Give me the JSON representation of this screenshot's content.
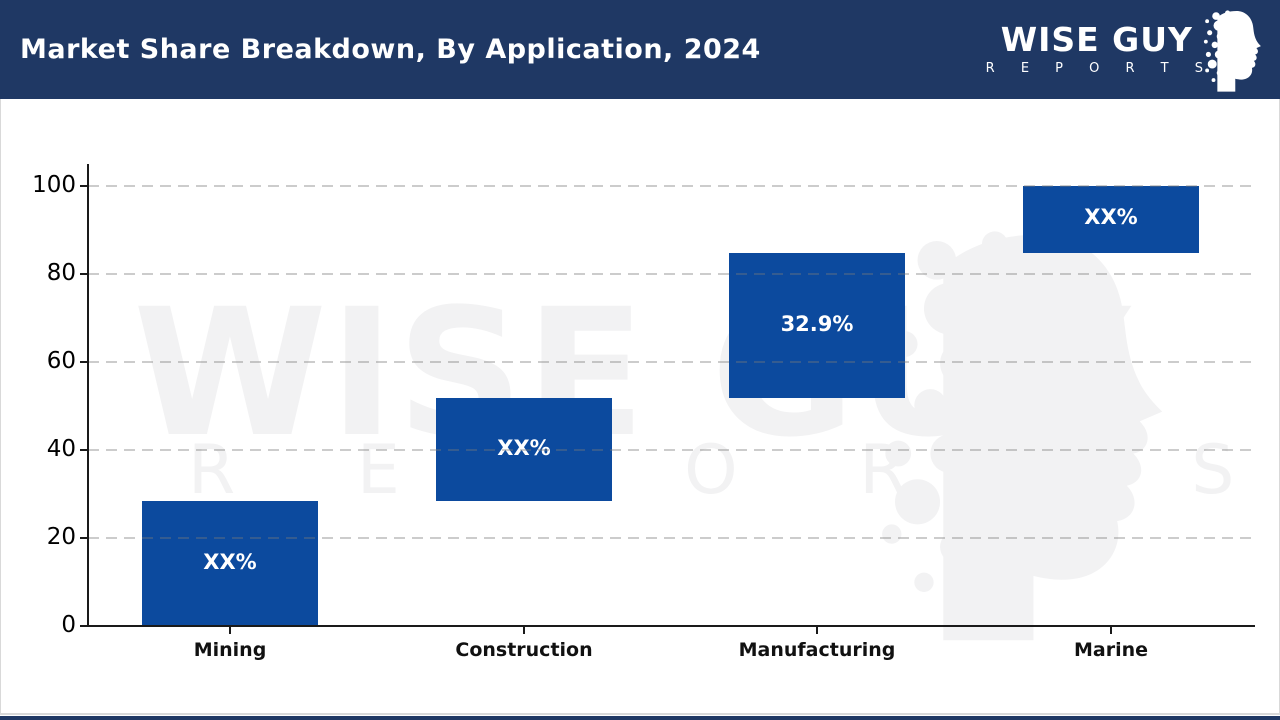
{
  "header": {
    "title": "Market Share Breakdown, By Application, 2024",
    "bg_color": "#1F3864",
    "logo": {
      "line1": "WISE GUY",
      "line2": "R E P O R T S"
    }
  },
  "watermark": {
    "line1": "WISE GUY",
    "line2": "R E P O R T S"
  },
  "chart_data": {
    "type": "bar",
    "subtype": "waterfall",
    "title": "Market Share Breakdown, By Application, 2024",
    "categories": [
      "Mining",
      "Construction",
      "Manufacturing",
      "Marine"
    ],
    "series": [
      {
        "name": "Market Share (%)",
        "starts": [
          0,
          28.3,
          51.7,
          84.6
        ],
        "ends": [
          28.3,
          51.7,
          84.6,
          100
        ],
        "segment_sizes": [
          28.3,
          23.4,
          32.9,
          15.4
        ]
      }
    ],
    "bar_labels": [
      "XX%",
      "XX%",
      "32.9%",
      "XX%"
    ],
    "xlabel": "",
    "ylabel": "",
    "ylim": [
      0,
      100
    ],
    "yticks": [
      0,
      20,
      40,
      60,
      80,
      100
    ],
    "grid": "horizontal-dashed",
    "legend": "none",
    "bar_color": "#0C4A9E",
    "bar_label_color": "#ffffff",
    "gridline_color": "rgba(120,120,120,0.38)",
    "axis_color": "#1a1a1a"
  },
  "colors": {
    "header_navy": "#1F3864",
    "bar_blue": "#0C4A9E",
    "watermark_gray": "#F2F2F3"
  }
}
